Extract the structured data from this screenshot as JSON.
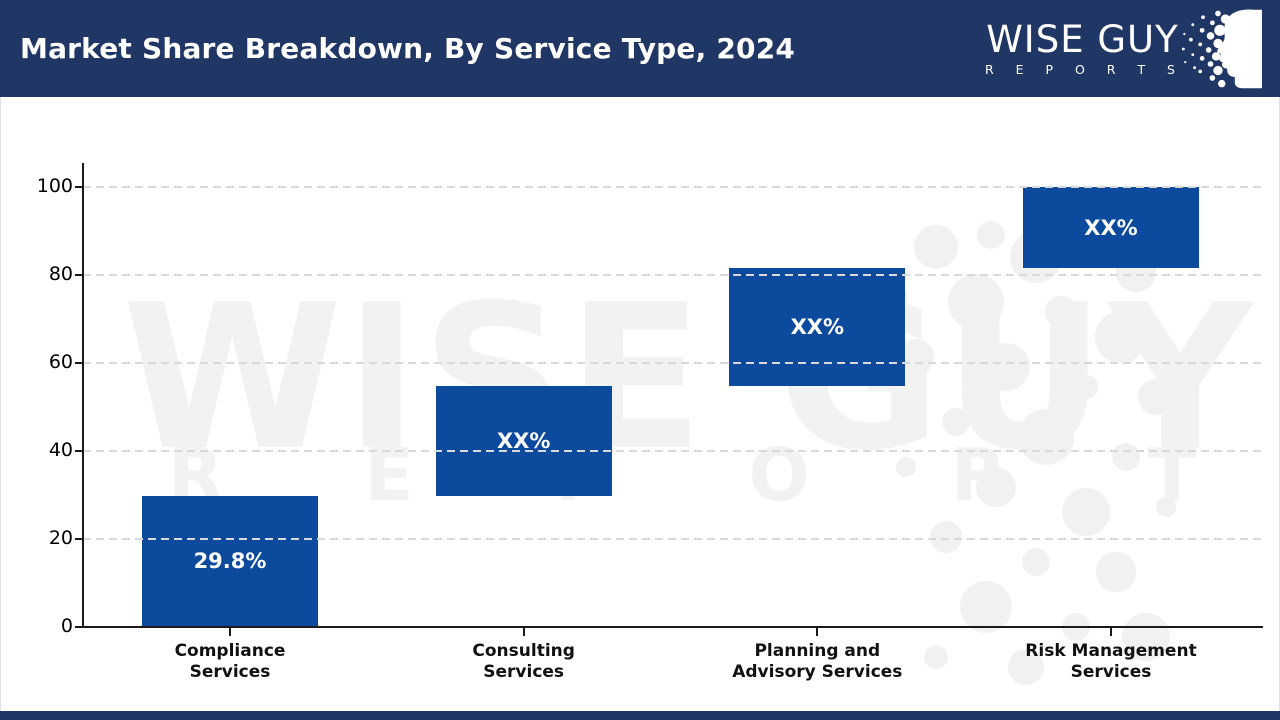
{
  "header": {
    "title": "Market Share Breakdown, By Service Type, 2024",
    "logo": {
      "name": "WISE GUY",
      "tagline": "R E P O R T S"
    }
  },
  "watermark": {
    "big": "WISE GUY",
    "small": "R E P O R T S"
  },
  "colors": {
    "header_bg": "#203664",
    "footer_bg": "#203664",
    "bar": "#0c4a9e",
    "axis": "#1a1a1a",
    "grid": "#d9d9d9",
    "watermark": "#f2f2f2"
  },
  "chart_data": {
    "type": "bar",
    "variant": "waterfall",
    "title": "Market Share Breakdown, By Service Type, 2024",
    "unit": "%",
    "ylim": [
      0,
      105
    ],
    "yticks": [
      0,
      20,
      40,
      60,
      80,
      100
    ],
    "grid": "horizontal-dashed",
    "legend": "none",
    "categories": [
      "Compliance Services",
      "Consulting Services",
      "Planning and Advisory Services",
      "Risk Management Services"
    ],
    "bars": [
      {
        "category": {
          "line1": "Compliance",
          "line2": "Services"
        },
        "start": 0,
        "end": 29.8,
        "value": 29.8,
        "label": "29.8%"
      },
      {
        "category": {
          "line1": "Consulting",
          "line2": "Services"
        },
        "start": 29.8,
        "end": 54.8,
        "value": 25.0,
        "label": "XX%"
      },
      {
        "category": {
          "line1": "Planning and",
          "line2": "Advisory Services"
        },
        "start": 54.8,
        "end": 81.5,
        "value": 26.7,
        "label": "XX%"
      },
      {
        "category": {
          "line1": "Risk Management",
          "line2": "Services"
        },
        "start": 81.5,
        "end": 100,
        "value": 18.5,
        "label": "XX%"
      }
    ]
  }
}
